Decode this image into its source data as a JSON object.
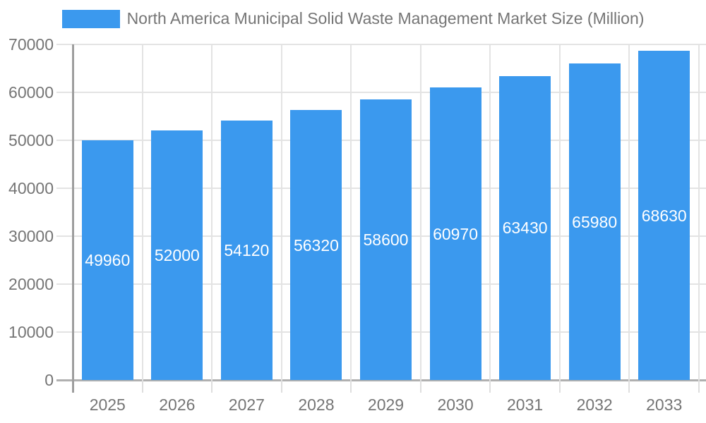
{
  "legend": {
    "title": "North America Municipal Solid Waste Management Market Size (Million)"
  },
  "chart_data": {
    "type": "bar",
    "title": "North America Municipal Solid Waste Management Market Size (Million)",
    "categories": [
      "2025",
      "2026",
      "2027",
      "2028",
      "2029",
      "2030",
      "2031",
      "2032",
      "2033"
    ],
    "values": [
      49960,
      52000,
      54120,
      56320,
      58600,
      60970,
      63430,
      65980,
      68630
    ],
    "xlabel": "",
    "ylabel": "",
    "ylim": [
      0,
      70000
    ],
    "yticks": [
      0,
      10000,
      20000,
      30000,
      40000,
      50000,
      60000,
      70000
    ],
    "grid": true,
    "legend_position": "top",
    "bar_color": "#3B99EE",
    "value_label_color": "#ffffff",
    "axis_text_color": "#757575",
    "gridline_color": "#e3e3e3",
    "axis_line_color": "#b0b0b0"
  }
}
